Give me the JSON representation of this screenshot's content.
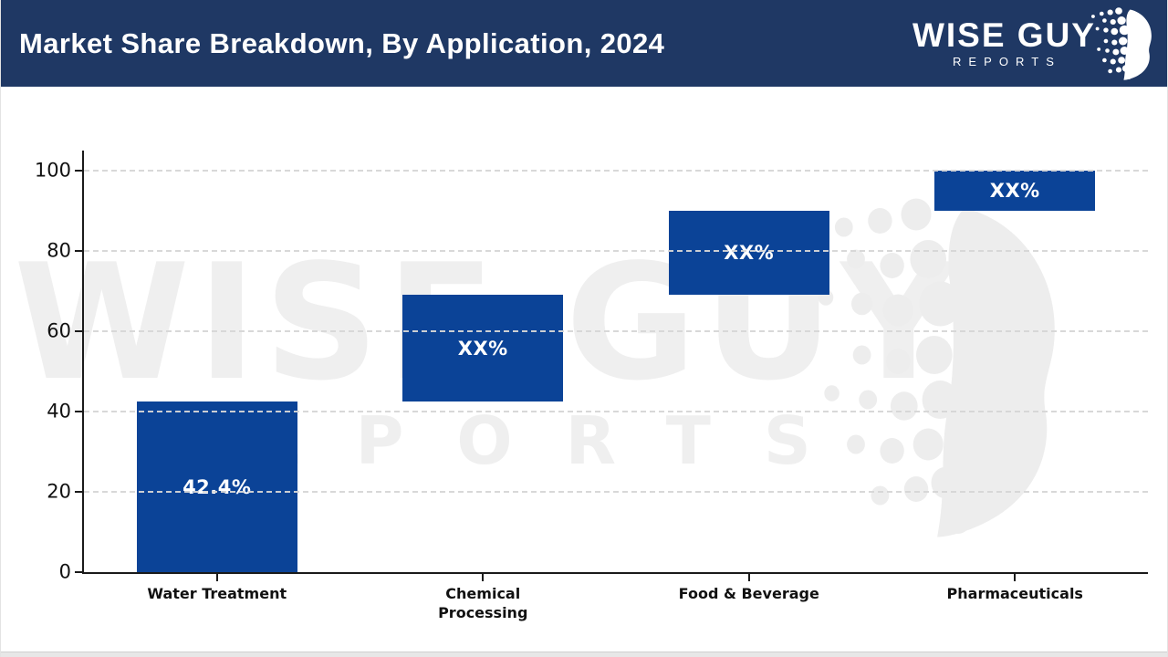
{
  "header": {
    "title": "Market Share Breakdown, By Application, 2024",
    "background_color": "#1f3864",
    "logo": {
      "line1": "WISE GUY",
      "line2": "REPORTS",
      "icon": "dotted-head-profile"
    }
  },
  "watermark": {
    "line1": "WISE GUY",
    "line2": "REPORTS",
    "icon": "dotted-head-profile",
    "color": "#efefef"
  },
  "chart_data": {
    "type": "bar",
    "subtype": "waterfall-floating-segments",
    "title": "Market Share Breakdown, By Application, 2024",
    "xlabel": "",
    "ylabel": "",
    "categories": [
      "Water Treatment",
      "Chemical Processing",
      "Food & Beverage",
      "Pharmaceuticals"
    ],
    "segments": [
      {
        "label": "Water Treatment",
        "start": 0,
        "end": 42.4,
        "value": 42.4,
        "value_label": "42.4%"
      },
      {
        "label": "Chemical Processing",
        "start": 42.4,
        "end": 69,
        "value": 26.6,
        "value_label": "XX%"
      },
      {
        "label": "Food & Beverage",
        "start": 69,
        "end": 90,
        "value": 21,
        "value_label": "XX%"
      },
      {
        "label": "Pharmaceuticals",
        "start": 90,
        "end": 100,
        "value": 10,
        "value_label": "XX%"
      }
    ],
    "yticks": [
      0,
      20,
      40,
      60,
      80,
      100
    ],
    "ylim": [
      0,
      105
    ],
    "bar_color": "#0b4397",
    "grid": "horizontal-dashed",
    "grid_color": "#d9d9d9",
    "legend": "none"
  }
}
